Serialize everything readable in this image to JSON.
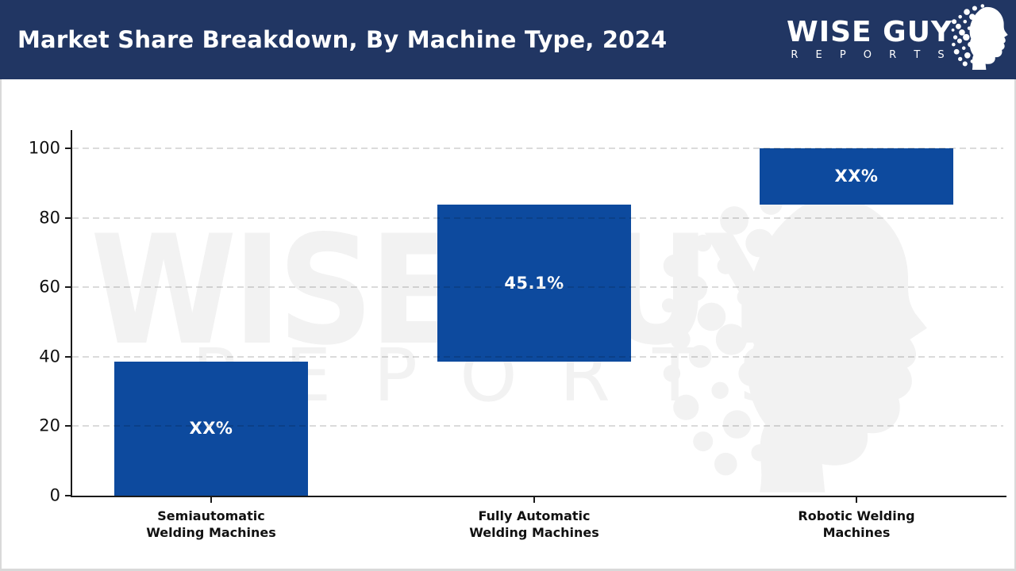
{
  "header": {
    "title": "Market Share Breakdown, By Machine Type, 2024",
    "logo": {
      "name": "WISE GUY",
      "subtitle": "R E P O R T S"
    }
  },
  "watermark": {
    "line1": "WISE GUY",
    "line2": "R E P O R T S"
  },
  "chart_data": {
    "type": "bar",
    "subtype": "waterfall",
    "title": "Market Share Breakdown, By Machine Type, 2024",
    "unit": "percent",
    "categories": [
      {
        "line1": "Semiautomatic",
        "line2": "Welding Machines"
      },
      {
        "line1": "Fully Automatic",
        "line2": "Welding Machines"
      },
      {
        "line1": "Robotic Welding",
        "line2": "Machines"
      }
    ],
    "segments": [
      {
        "category": "Semiautomatic Welding Machines",
        "start": 0,
        "end": 38.7,
        "value_estimate": 38.7,
        "label": "XX%"
      },
      {
        "category": "Fully Automatic Welding Machines",
        "start": 38.7,
        "end": 83.8,
        "value_estimate": 45.1,
        "label": "45.1%"
      },
      {
        "category": "Robotic Welding Machines",
        "start": 83.8,
        "end": 100,
        "value_estimate": 16.2,
        "label": "XX%"
      }
    ],
    "ylim": [
      0,
      100
    ],
    "yticks": [
      "0",
      "20",
      "40",
      "60",
      "80",
      "100"
    ],
    "grid": "horizontal dashed",
    "legend": "none",
    "colors": {
      "bar": "#0d4a9e",
      "header_bg": "#213663",
      "grid": "#d9d9d9",
      "axis": "#1a1a1a",
      "watermark": "#f2f2f2"
    }
  }
}
